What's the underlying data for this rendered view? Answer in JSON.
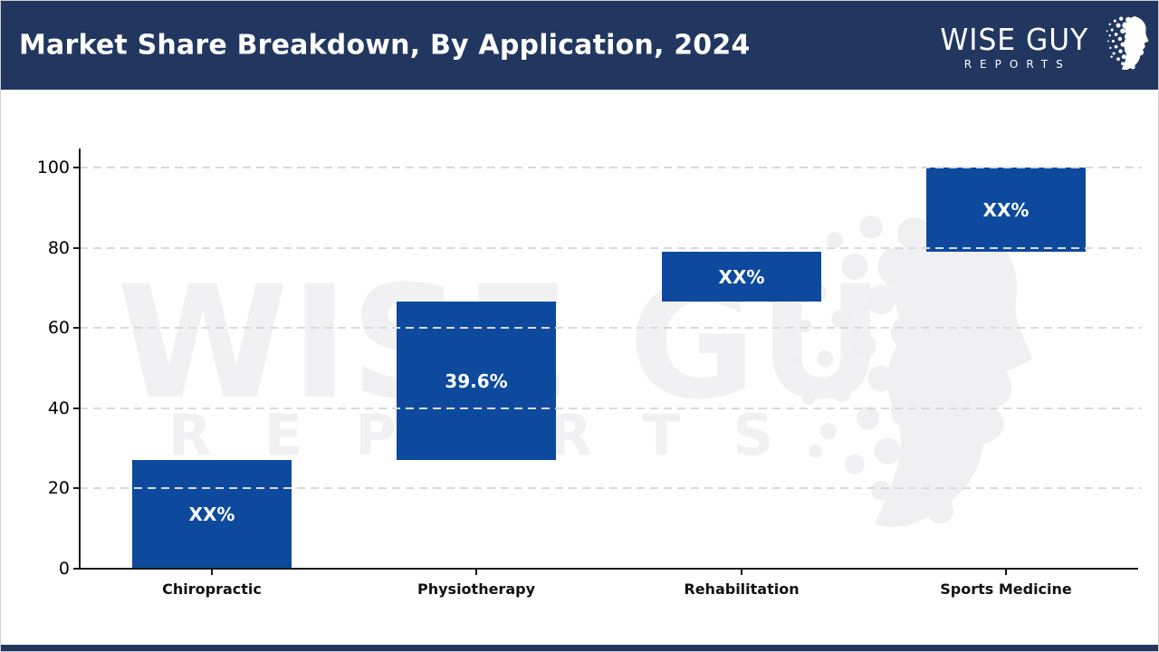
{
  "header": {
    "title": "Market Share Breakdown, By Application, 2024",
    "logo_name": "WISE GUY",
    "logo_sub": "REPORTS"
  },
  "watermark": {
    "name": "WISE GUY",
    "sub": "REPORTS"
  },
  "colors": {
    "header_bg": "#213760",
    "bar": "#0d4a9e",
    "bar_label": "#ffffff",
    "grid": "#d9d9d9",
    "axis": "#1a1a1a",
    "watermark": "#f1f1f3"
  },
  "chart_data": {
    "type": "bar",
    "variant": "floating-waterfall",
    "title": "Market Share Breakdown, By Application, 2024",
    "categories": [
      "Chiropractic",
      "Physiotherapy",
      "Rehabilitation",
      "Sports Medicine"
    ],
    "segments": [
      {
        "category": "Chiropractic",
        "start": 0,
        "end": 27,
        "value": 27,
        "label": "XX%"
      },
      {
        "category": "Physiotherapy",
        "start": 27,
        "end": 66.6,
        "value": 39.6,
        "label": "39.6%"
      },
      {
        "category": "Rehabilitation",
        "start": 66.6,
        "end": 79,
        "value": 12.4,
        "label": "XX%"
      },
      {
        "category": "Sports Medicine",
        "start": 79,
        "end": 100,
        "value": 21,
        "label": "XX%"
      }
    ],
    "yticks": [
      0,
      20,
      40,
      60,
      80,
      100
    ],
    "ylim": [
      0,
      105
    ],
    "xlabel": "",
    "ylabel": "",
    "grid": "horizontal-dashed",
    "legend": "none"
  }
}
